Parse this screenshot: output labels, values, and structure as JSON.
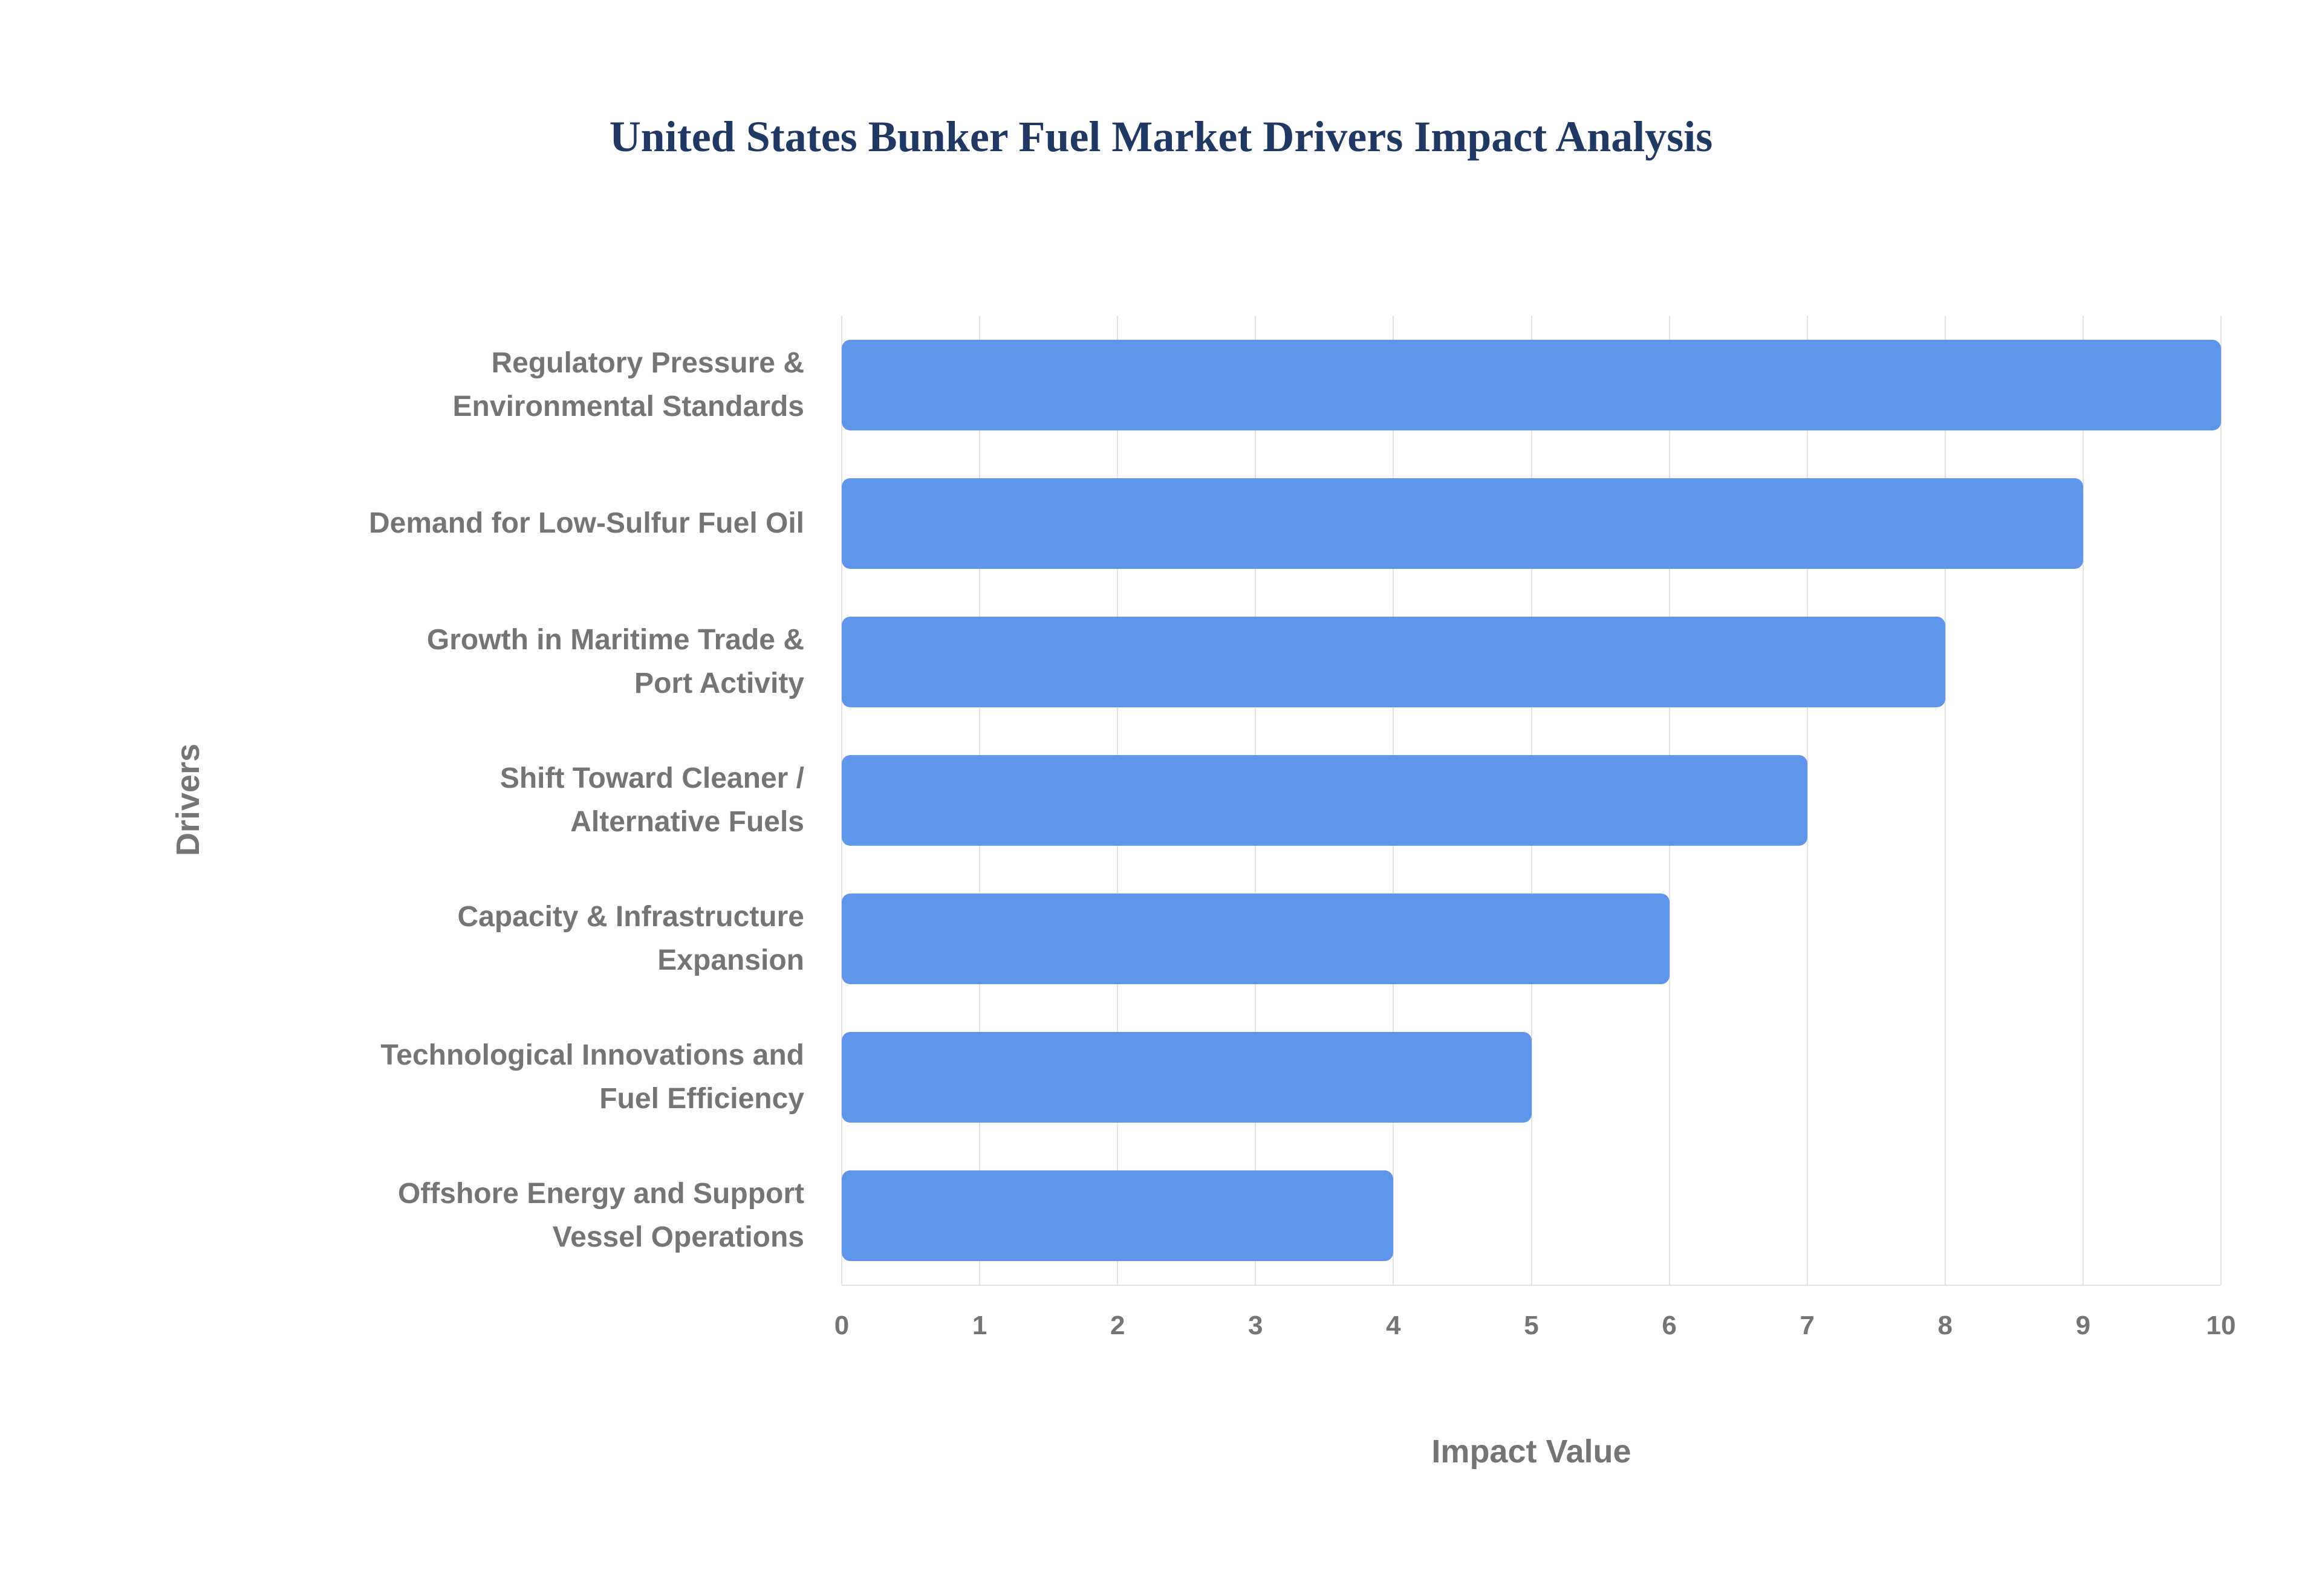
{
  "title": "United States Bunker Fuel Market Drivers Impact Analysis",
  "chart_data": {
    "type": "bar",
    "orientation": "horizontal",
    "title": "United States Bunker Fuel Market Drivers Impact Analysis",
    "categories": [
      "Regulatory Pressure &\nEnvironmental Standards",
      "Demand for Low-Sulfur Fuel Oil",
      "Growth in Maritime Trade &\nPort Activity",
      "Shift Toward Cleaner /\nAlternative Fuels",
      "Capacity & Infrastructure\nExpansion",
      "Technological Innovations and\nFuel Efficiency",
      "Offshore Energy and Support\nVessel Operations"
    ],
    "values": [
      10,
      9,
      8,
      7,
      6,
      5,
      4
    ],
    "xlabel": "Impact Value",
    "ylabel": "Drivers",
    "xlim": [
      0,
      10
    ],
    "xticks": [
      0,
      1,
      2,
      3,
      4,
      5,
      6,
      7,
      8,
      9,
      10
    ],
    "grid": "vertical",
    "legend": "none"
  },
  "colors": {
    "bar": "#6095EC",
    "title": "#1F3864",
    "axis_label": "#757575",
    "gridline": "#E3E3E3",
    "background": "#FFFFFF"
  }
}
